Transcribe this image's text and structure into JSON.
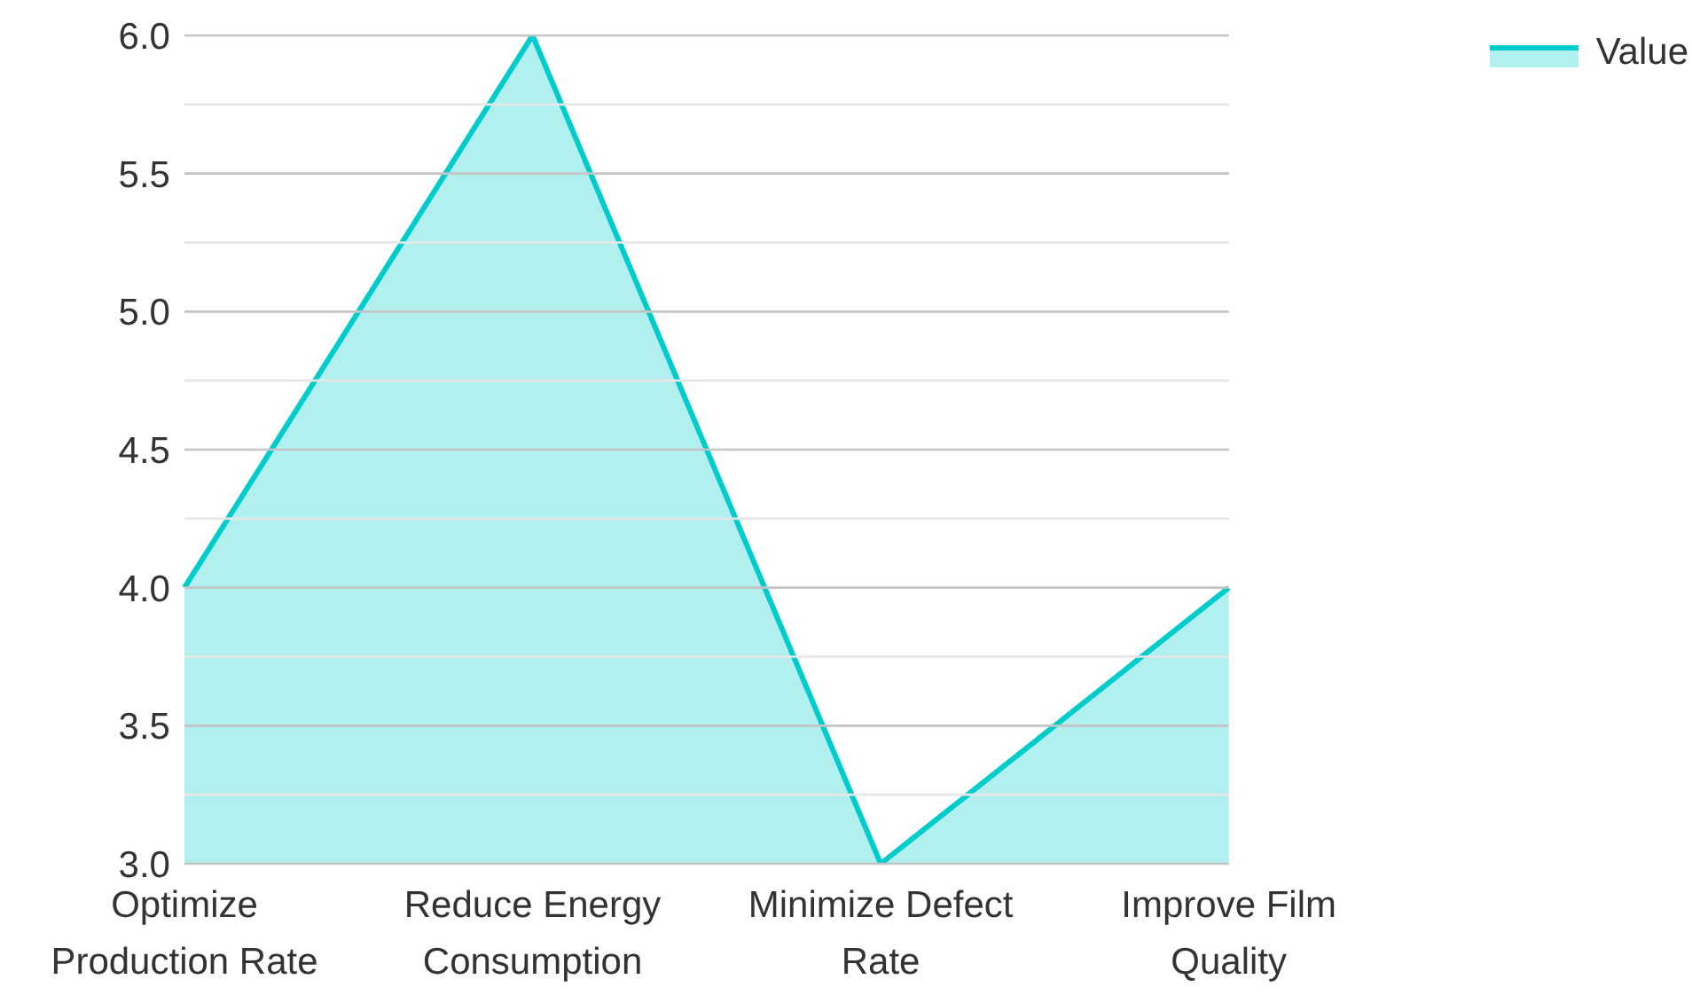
{
  "chart_data": {
    "type": "area",
    "categories": [
      "Optimize Production Rate",
      "Reduce Energy Consumption",
      "Minimize Defect Rate",
      "Improve Film Quality"
    ],
    "series": [
      {
        "name": "Value",
        "color": "#00cccc",
        "values": [
          4,
          6,
          3,
          4
        ]
      }
    ],
    "ylim": [
      3,
      6
    ],
    "yticks": [
      {
        "value": 3,
        "label": "3.0"
      },
      {
        "value": 3.25,
        "label": null
      },
      {
        "value": 3.5,
        "label": "3.5"
      },
      {
        "value": 3.75,
        "label": null
      },
      {
        "value": 4,
        "label": "4.0"
      },
      {
        "value": 4.25,
        "label": null
      },
      {
        "value": 4.5,
        "label": "4.5"
      },
      {
        "value": 4.75,
        "label": null
      },
      {
        "value": 5,
        "label": "5.0"
      },
      {
        "value": 5.25,
        "label": null
      },
      {
        "value": 5.5,
        "label": "5.5"
      },
      {
        "value": 5.75,
        "label": null
      },
      {
        "value": 6,
        "label": "6.0"
      }
    ],
    "grid": "y",
    "legend": "top right"
  }
}
